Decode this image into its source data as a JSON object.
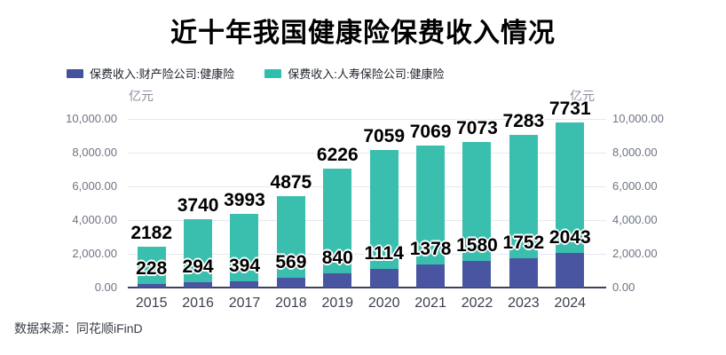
{
  "title": "近十年我国健康险保费收入情况",
  "legend": [
    {
      "label": "保费收入:财产险公司:健康险",
      "color": "#44519b"
    },
    {
      "label": "保费收入:人寿保险公司:健康险",
      "color": "#2fbfac"
    }
  ],
  "unit_left": "亿元",
  "unit_right": "亿元",
  "source": "数据来源：同花顺iFinD",
  "chart_data": {
    "type": "bar",
    "stacked": true,
    "title": "近十年我国健康险保费收入情况",
    "categories": [
      "2015",
      "2016",
      "2017",
      "2018",
      "2019",
      "2020",
      "2021",
      "2022",
      "2023",
      "2024"
    ],
    "series": [
      {
        "name": "保费收入:财产险公司:健康险",
        "color": "#4955a0",
        "values": [
          228,
          294,
          394,
          569,
          840,
          1114,
          1378,
          1580,
          1752,
          2043
        ]
      },
      {
        "name": "保费收入:人寿保险公司:健康险",
        "color": "#3abfae",
        "values": [
          2182,
          3740,
          3993,
          4875,
          6226,
          7059,
          7069,
          7073,
          7283,
          7731
        ]
      }
    ],
    "value_labels": true,
    "ylabel": "亿元",
    "ylim": [
      0,
      10000
    ],
    "ytick_values": [
      10000,
      8000,
      6000,
      4000,
      2000,
      0
    ],
    "ytick_labels": [
      "10,000.00",
      "8,000.00",
      "6,000.00",
      "4,000.00",
      "2,000.00",
      "0.00"
    ],
    "grid": "horizontal",
    "legend_position": "top-left",
    "source": "数据来源：同花顺iFinD"
  }
}
